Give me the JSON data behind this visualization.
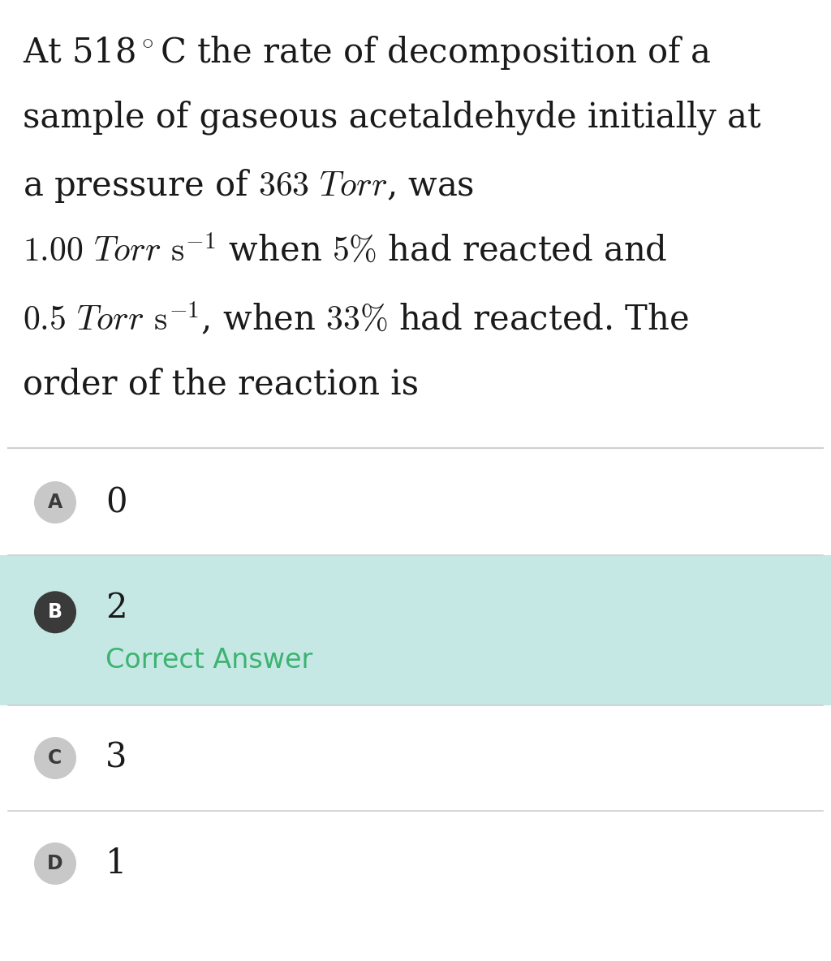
{
  "background_color": "#ffffff",
  "line_texts_plain": [
    "At 518°C the rate of decomposition of a",
    "sample of gaseous acetaldehyde initially at",
    "a pressure of 363 Torr, was",
    "1. 00 Torr s⁻¹ when 5% had reacted and",
    "0. 5 Torr s⁻¹, when 33% had reacted. The",
    "order of the reaction is"
  ],
  "options": [
    {
      "label": "A",
      "text": "0",
      "correct": false
    },
    {
      "label": "B",
      "text": "2",
      "correct": true
    },
    {
      "label": "C",
      "text": "3",
      "correct": false
    },
    {
      "label": "D",
      "text": "1",
      "correct": false
    }
  ],
  "correct_answer_text": "Correct Answer",
  "correct_bg_color": "#c5e8e4",
  "option_circle_correct_bg": "#3a3a3a",
  "option_circle_correct_fg": "#ffffff",
  "option_circle_normal_bg": "#c8c8c8",
  "option_circle_normal_fg": "#3a3a3a",
  "correct_answer_color": "#3cb371",
  "divider_color": "#d0d0d0",
  "text_color": "#1a1a1a",
  "question_fontsize": 30,
  "option_label_fontsize": 30,
  "option_circle_label_fontsize": 17,
  "correct_label_fontsize": 24
}
